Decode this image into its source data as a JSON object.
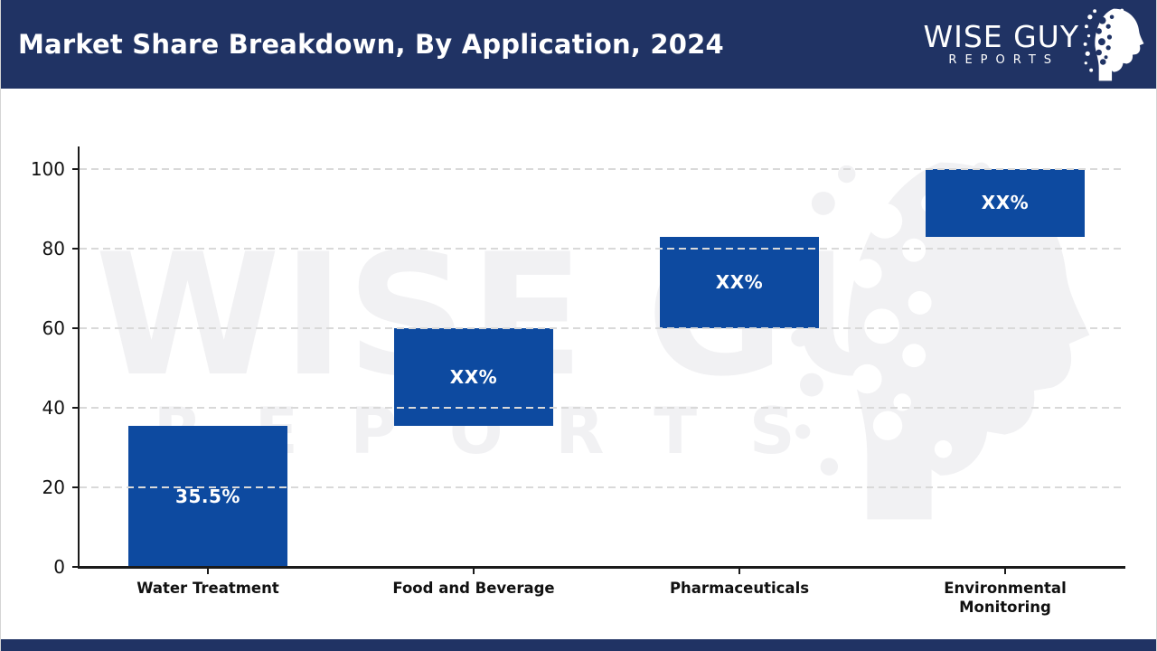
{
  "header": {
    "title": "Market Share Breakdown, By Application, 2024",
    "logo": {
      "name": "WISE GUY",
      "sub": "REPORTS",
      "icon": "wiseguy-head-icon"
    }
  },
  "watermark": {
    "line1": "WISE GUY",
    "line2": "REPORTS",
    "icon": "wiseguy-head-watermark"
  },
  "colors": {
    "header_bg": "#203364",
    "footer_bg": "#203364",
    "bar": "#0d4aa0",
    "gridline": "#d9d9d9",
    "axis": "#1a1a1a",
    "bar_label_text": "#ffffff",
    "watermark": "#f1f1f3"
  },
  "chart_data": {
    "type": "bar",
    "subtype": "waterfall",
    "title": "Market Share Breakdown, By Application, 2024",
    "categories": [
      "Water Treatment",
      "Food and Beverage",
      "Pharmaceuticals",
      "Environmental Monitoring"
    ],
    "segments": [
      {
        "category": "Water Treatment",
        "start": 0,
        "end": 35.5,
        "value": 35.5,
        "label": "35.5%"
      },
      {
        "category": "Food and Beverage",
        "start": 35.5,
        "end": 60,
        "value": 24.5,
        "label": "XX%"
      },
      {
        "category": "Pharmaceuticals",
        "start": 60,
        "end": 83,
        "value": 23,
        "label": "XX%"
      },
      {
        "category": "Environmental Monitoring",
        "start": 83,
        "end": 100,
        "value": 17,
        "label": "XX%"
      }
    ],
    "ylim": [
      0,
      100
    ],
    "yticks": [
      0,
      20,
      40,
      60,
      80,
      100
    ],
    "xlabel": "",
    "ylabel": "",
    "grid": "horizontal-dashed-over-bars",
    "legend": "none",
    "bar_color": "#0d4aa0"
  }
}
